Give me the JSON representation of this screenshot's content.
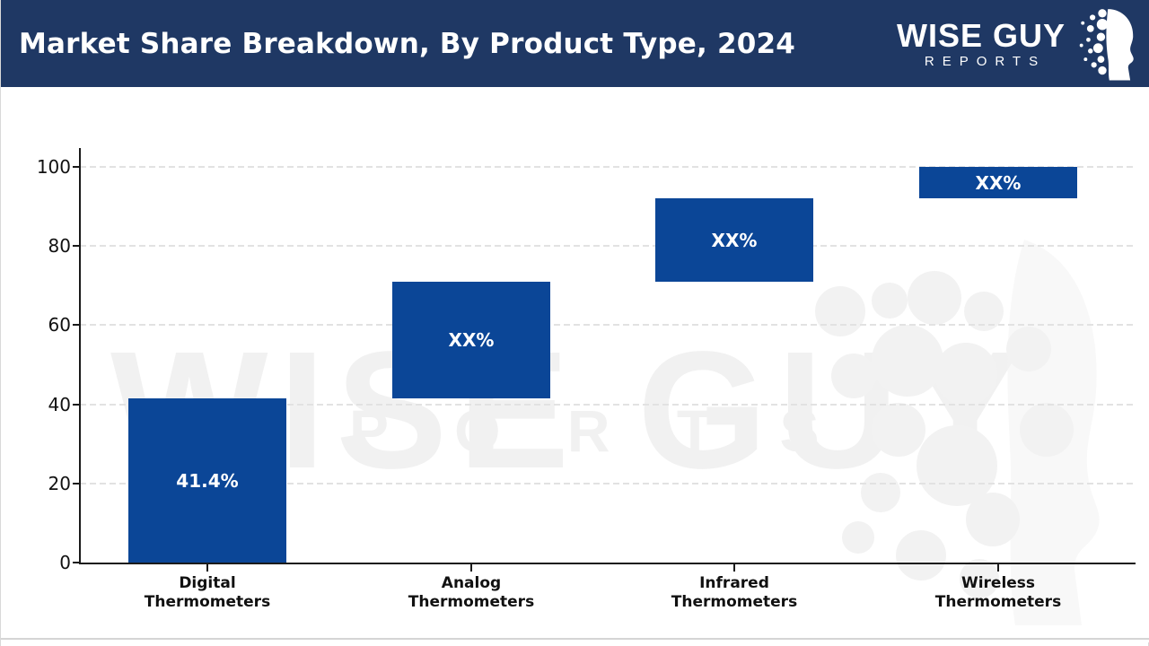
{
  "header": {
    "title": "Market Share Breakdown, By Product Type, 2024",
    "logo": {
      "wordmark": "WISE GUY",
      "subtitle": "REPORTS"
    }
  },
  "watermark": {
    "line1": "WISE GUY",
    "line2": "P O R T S"
  },
  "colors": {
    "header_bg": "#1f3864",
    "bar": "#0b4697",
    "bar_label": "#ffffff",
    "gridline": "#e2e2e2",
    "axis": "#1a1a1a",
    "watermark": "#f1f1f1"
  },
  "chart_data": {
    "type": "bar",
    "subtype": "waterfall",
    "title": "Market Share Breakdown, By Product Type, 2024",
    "categories": [
      "Digital\nThermometers",
      "Analog\nThermometers",
      "Infrared\nThermometers",
      "Wireless\nThermometers"
    ],
    "segments": [
      {
        "category": "Digital Thermometers",
        "start": 0,
        "end": 41.4,
        "label": "41.4%"
      },
      {
        "category": "Analog Thermometers",
        "start": 41.4,
        "end": 71,
        "label": "XX%"
      },
      {
        "category": "Infrared Thermometers",
        "start": 71,
        "end": 92,
        "label": "XX%"
      },
      {
        "category": "Wireless Thermometers",
        "start": 92,
        "end": 100,
        "label": "XX%"
      }
    ],
    "ylim": [
      0,
      100
    ],
    "yticks": [
      0,
      20,
      40,
      60,
      80,
      100
    ],
    "grid": "horizontal-dashed",
    "legend": null,
    "bar_label_color": "#ffffff",
    "bar_color": "#0b4697"
  }
}
